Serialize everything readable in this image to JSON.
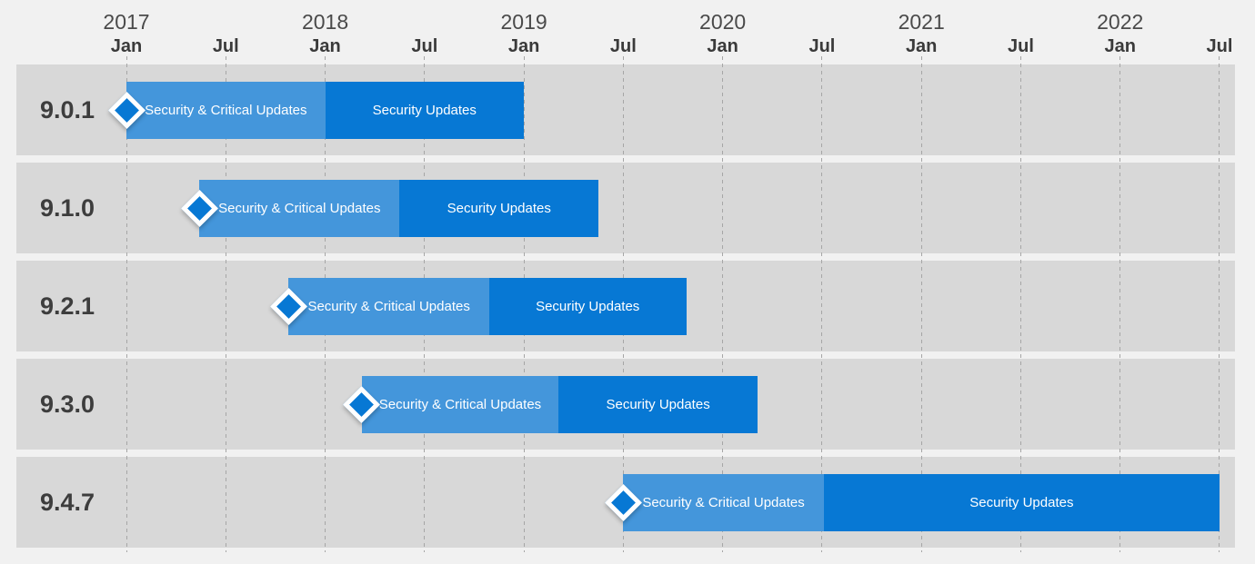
{
  "colors": {
    "background": "#f1f1f1",
    "row_band": "#d8d8d8",
    "gridline": "#a6a6a6",
    "phase_security_critical": "#4496db",
    "phase_security": "#0778d4",
    "diamond_fill": "#0778d4",
    "diamond_border": "#ffffff",
    "axis_year_text": "#4a4a4a",
    "axis_month_text": "#3a3a3a",
    "row_label_text": "#3d3d3d",
    "bar_text": "#ffffff"
  },
  "chart_data": {
    "type": "bar",
    "subtype": "gantt-timeline",
    "title": "",
    "xlabel": "",
    "ylabel": "",
    "grid": "vertical-dashed",
    "x_axis": {
      "unit": "months_since_2017_01",
      "range_months": [
        0,
        66
      ],
      "ticks": [
        {
          "month": 0,
          "label": "Jan",
          "year": "2017"
        },
        {
          "month": 6,
          "label": "Jul",
          "year": ""
        },
        {
          "month": 12,
          "label": "Jan",
          "year": "2018"
        },
        {
          "month": 18,
          "label": "Jul",
          "year": ""
        },
        {
          "month": 24,
          "label": "Jan",
          "year": "2019"
        },
        {
          "month": 30,
          "label": "Jul",
          "year": ""
        },
        {
          "month": 36,
          "label": "Jan",
          "year": "2020"
        },
        {
          "month": 42,
          "label": "Jul",
          "year": ""
        },
        {
          "month": 48,
          "label": "Jan",
          "year": "2021"
        },
        {
          "month": 54,
          "label": "Jul",
          "year": ""
        },
        {
          "month": 60,
          "label": "Jan",
          "year": "2022"
        },
        {
          "month": 66,
          "label": "Jul",
          "year": ""
        }
      ]
    },
    "phases": [
      {
        "name": "Security & Critical Updates",
        "color": "#4496db"
      },
      {
        "name": "Security Updates",
        "color": "#0778d4"
      }
    ],
    "rows": [
      {
        "version": "9.0.1",
        "start_month": 0.0,
        "phase1_end_month": 12.0,
        "end_month": 24.0
      },
      {
        "version": "9.1.0",
        "start_month": 4.4,
        "phase1_end_month": 16.5,
        "end_month": 28.5
      },
      {
        "version": "9.2.1",
        "start_month": 9.8,
        "phase1_end_month": 21.9,
        "end_month": 33.8
      },
      {
        "version": "9.3.0",
        "start_month": 14.2,
        "phase1_end_month": 26.1,
        "end_month": 38.1
      },
      {
        "version": "9.4.7",
        "start_month": 30.0,
        "phase1_end_month": 42.1,
        "end_month": 66.0
      }
    ]
  }
}
